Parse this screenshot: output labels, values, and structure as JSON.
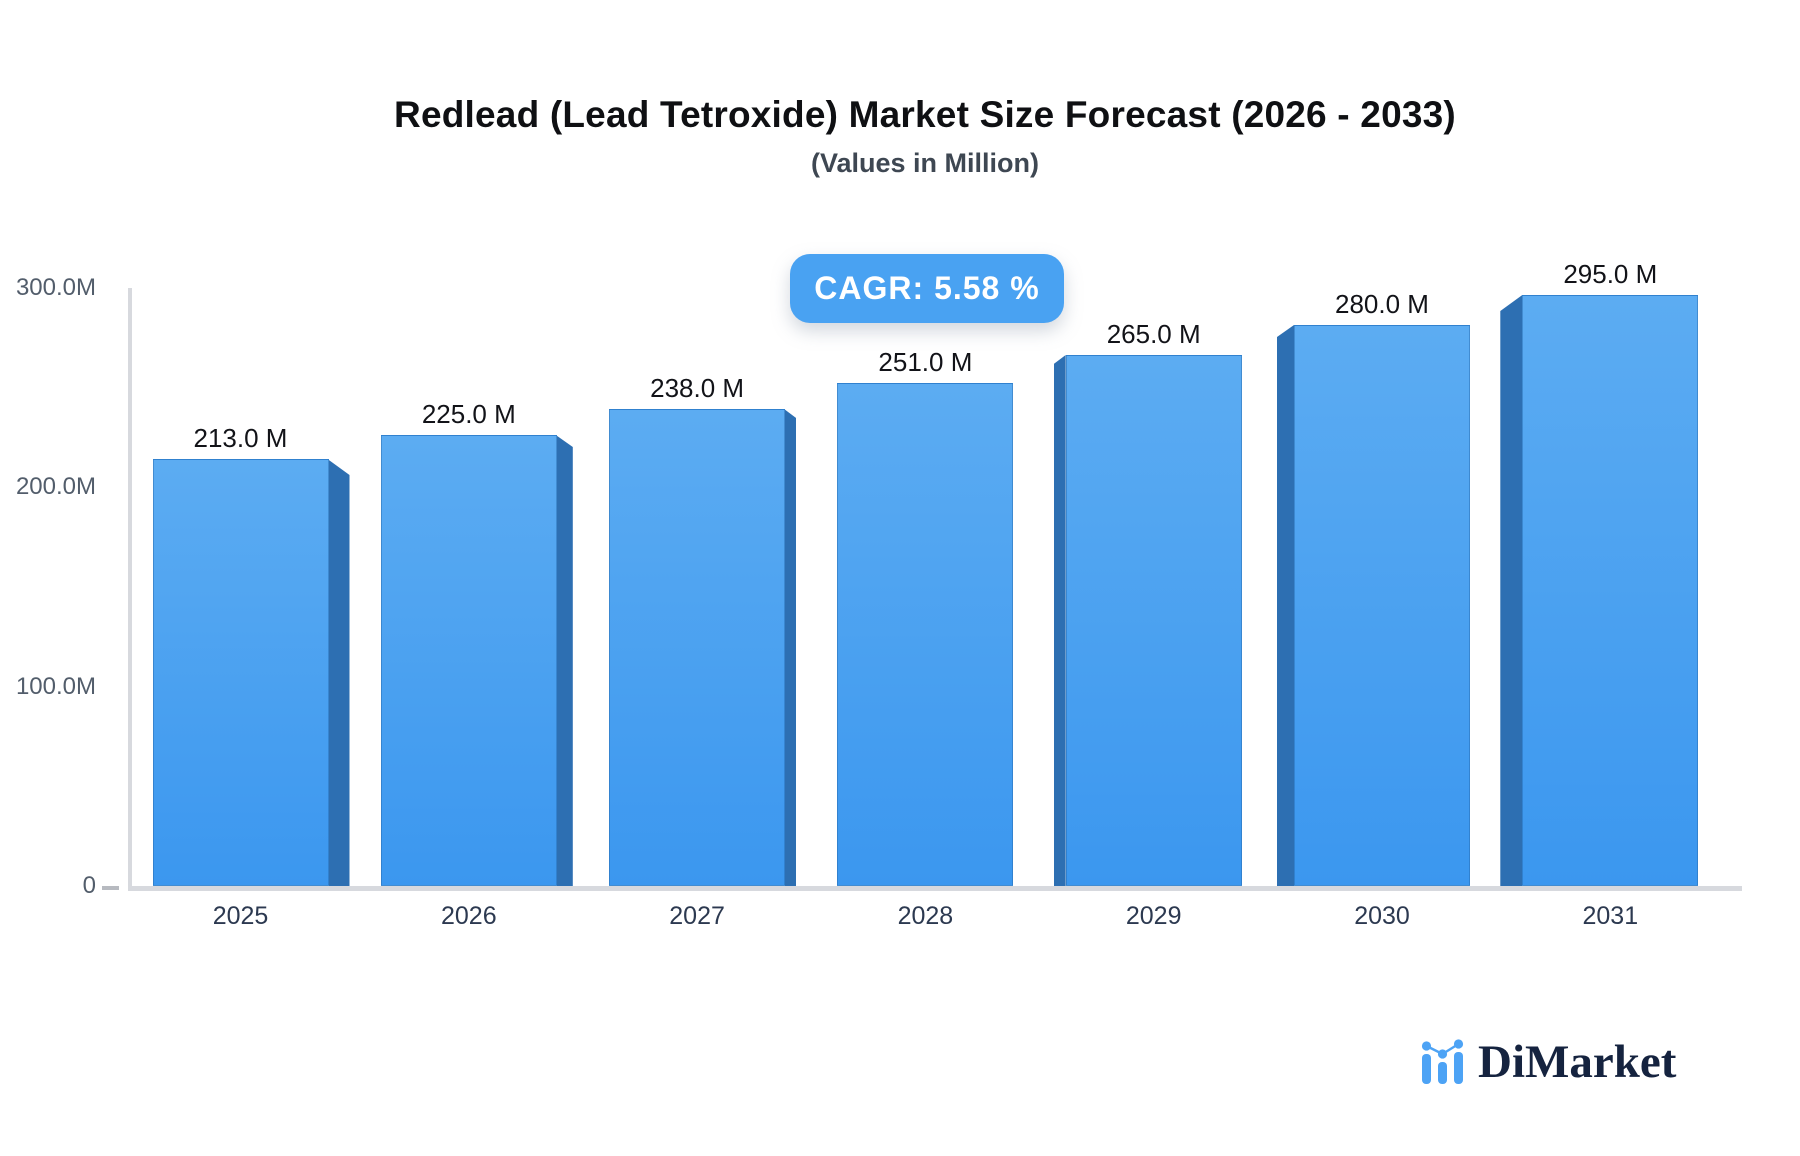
{
  "title": "Redlead (Lead Tetroxide) Market Size Forecast (2026 - 2033)",
  "subtitle": "(Values in Million)",
  "cagr": {
    "label": "CAGR: 5.58 %"
  },
  "watermark": {
    "brand": "DiMarket",
    "icon": "bar-chart-logo-icon"
  },
  "colors": {
    "bar_face_top": "#5cacf2",
    "bar_face_bottom": "#3b97ef",
    "bar_side": "#2d6fb2",
    "badge_bg": "#49a2f2",
    "axis_gray": "#d7d9de",
    "logo_navy": "#15233f",
    "logo_blue": "#4da3f5"
  },
  "chart_data": {
    "type": "bar",
    "title": "Redlead (Lead Tetroxide) Market Size Forecast (2026 - 2033)",
    "subtitle": "(Values in Million)",
    "categories": [
      "2025",
      "2026",
      "2027",
      "2028",
      "2029",
      "2030",
      "2031"
    ],
    "values": [
      213.0,
      225.0,
      238.0,
      251.0,
      265.0,
      280.0,
      295.0
    ],
    "value_labels": [
      "213.0 M",
      "225.0 M",
      "238.0 M",
      "251.0 M",
      "265.0 M",
      "280.0 M",
      "295.0 M"
    ],
    "unit": "Million",
    "annotation": "CAGR: 5.58 %",
    "y_ticks": [
      "0",
      "100.0M",
      "200.0M",
      "300.0M"
    ],
    "ylim": [
      0,
      300
    ],
    "xlabel": "",
    "ylabel": "",
    "grid": "off",
    "legend": "none",
    "bar_style": "3d-perspective"
  }
}
